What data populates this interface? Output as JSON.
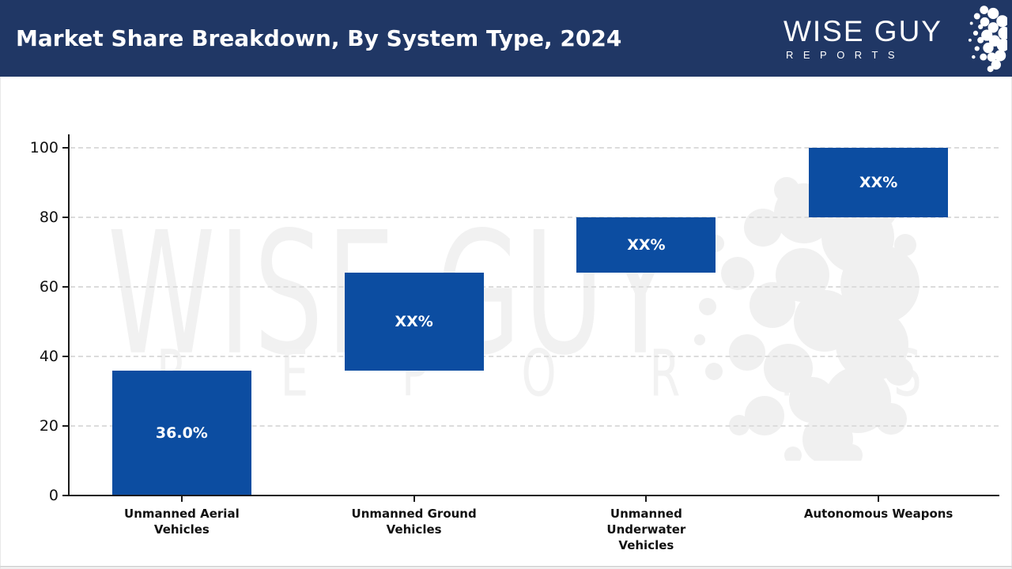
{
  "header": {
    "title": "Market Share Breakdown, By System Type, 2024",
    "bg_color": "#203765",
    "text_color": "#ffffff",
    "logo": {
      "line1": "WISE GUY",
      "line2": "REPORTS"
    }
  },
  "watermark": {
    "line1": "WISE GUY",
    "line2": "R E P O R T S"
  },
  "chart_data": {
    "type": "bar",
    "variant": "waterfall",
    "title": "Market Share Breakdown, By System Type, 2024",
    "categories": [
      "Unmanned Aerial Vehicles",
      "Unmanned Ground Vehicles",
      "Unmanned Underwater Vehicles",
      "Autonomous Weapons"
    ],
    "category_lines": [
      [
        "Unmanned Aerial",
        "Vehicles"
      ],
      [
        "Unmanned Ground",
        "Vehicles"
      ],
      [
        "Unmanned",
        "Underwater",
        "Vehicles"
      ],
      [
        "Autonomous Weapons"
      ]
    ],
    "segments": [
      {
        "start": 0,
        "end": 36
      },
      {
        "start": 36,
        "end": 64
      },
      {
        "start": 64,
        "end": 80
      },
      {
        "start": 80,
        "end": 100
      }
    ],
    "values": [
      36,
      28,
      16,
      20
    ],
    "bar_labels": [
      "36.0%",
      "XX%",
      "XX%",
      "XX%"
    ],
    "y_ticks": [
      0,
      20,
      40,
      60,
      80,
      100
    ],
    "ylim": [
      0,
      100
    ],
    "xlabel": "",
    "ylabel": "",
    "grid": "horizontal-dashed",
    "legend": "none",
    "bar_color": "#0c4da1",
    "bar_label_color": "#ffffff",
    "axis_color": "#1a1a1a",
    "grid_color": "#dcdcdc"
  }
}
